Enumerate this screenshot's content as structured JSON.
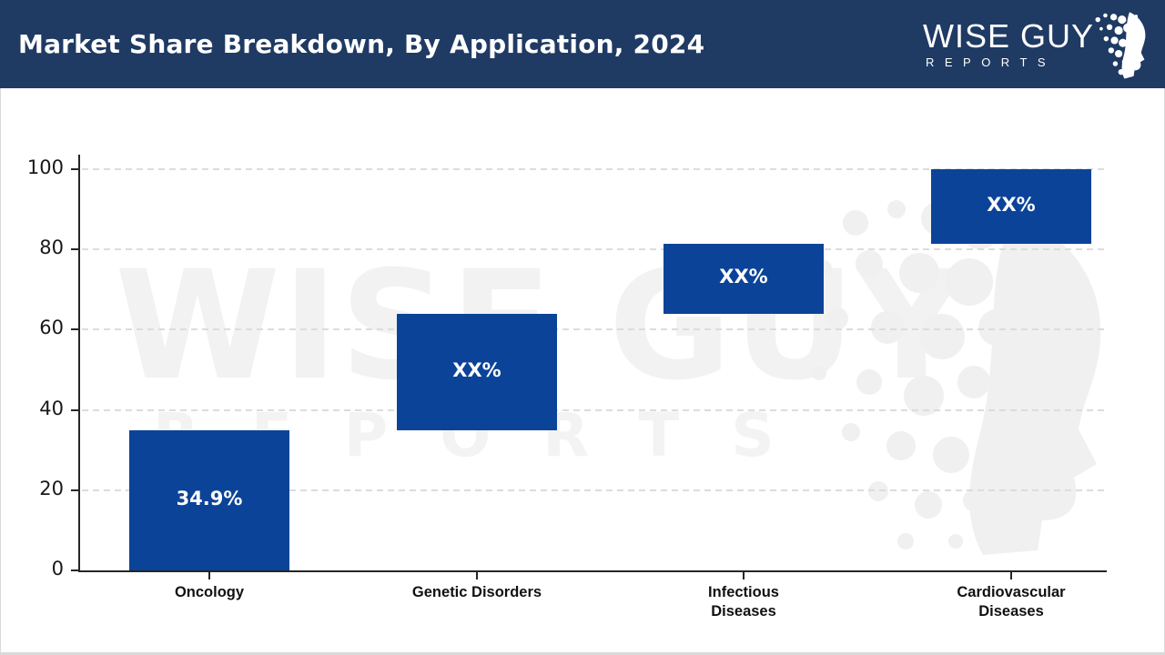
{
  "header": {
    "title": "Market Share Breakdown, By Application, 2024",
    "logo": {
      "line1": "WISE GUY",
      "line2": "REPORTS"
    }
  },
  "watermark": {
    "line1": "WISE GUY",
    "line2": "REPORTS"
  },
  "chart_data": {
    "type": "bar",
    "subtype": "floating-waterfall-bars",
    "title": "Market Share Breakdown, By Application, 2024",
    "categories": [
      "Oncology",
      "Genetic Disorders",
      "Infectious\nDiseases",
      "Cardiovascular\nDiseases"
    ],
    "segments": [
      {
        "category": "Oncology",
        "from": 0,
        "to": 34.9,
        "label": "34.9%"
      },
      {
        "category": "Genetic Disorders",
        "from": 34.9,
        "to": 64,
        "label": "XX%"
      },
      {
        "category": "Infectious Diseases",
        "from": 64,
        "to": 81.5,
        "label": "XX%"
      },
      {
        "category": "Cardiovascular Diseases",
        "from": 81.5,
        "to": 100,
        "label": "XX%"
      }
    ],
    "ylim": [
      0,
      100
    ],
    "yticks": [
      0,
      20,
      40,
      60,
      80,
      100
    ],
    "xlabel": "",
    "ylabel": "",
    "grid": "horizontal-dashed",
    "legend": "none",
    "colors": {
      "bar": "#0b4398",
      "bar_label": "#ffffff",
      "header_bg": "#1f3a63",
      "axis": "#262626",
      "gridline": "#dcdcdc",
      "tick_label": "#191919",
      "category_label": "#111111",
      "watermark": "#f2f2f2"
    }
  }
}
